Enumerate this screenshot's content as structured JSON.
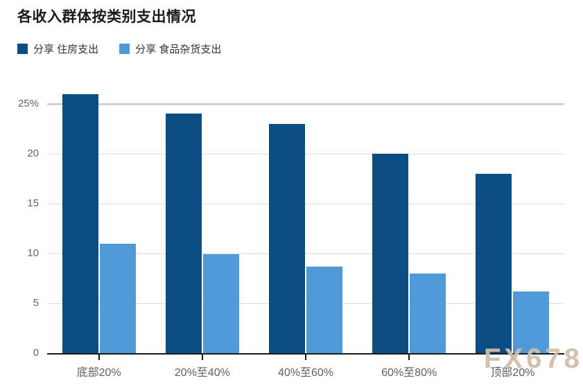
{
  "title": "各收入群体按类别支出情况",
  "watermark": "FX678",
  "legend": [
    {
      "key": "housing",
      "label": "分享 住房支出",
      "color": "#0a4d82"
    },
    {
      "key": "groceries",
      "label": "分享 食品杂货支出",
      "color": "#4f9ad6"
    }
  ],
  "chart_data": {
    "type": "bar",
    "title": "各收入群体按类别支出情况",
    "categories": [
      "底部20%",
      "20%至40%",
      "40%至60%",
      "60%至80%",
      "顶部20%"
    ],
    "series": [
      {
        "key": "housing",
        "name": "分享 住房支出",
        "color": "#0a4d82",
        "values": [
          26,
          24,
          23,
          20,
          18
        ]
      },
      {
        "key": "groceries",
        "name": "分享 食品杂货支出",
        "color": "#4f9ad6",
        "values": [
          11,
          9.9,
          8.7,
          8,
          6.2
        ]
      }
    ],
    "xlabel": "",
    "ylabel": "",
    "ylim": [
      0,
      25
    ],
    "yticks": [
      {
        "value": 0,
        "label": "0"
      },
      {
        "value": 5,
        "label": "5"
      },
      {
        "value": 10,
        "label": "10"
      },
      {
        "value": 15,
        "label": "15"
      },
      {
        "value": 20,
        "label": "20"
      },
      {
        "value": 25,
        "label": "25%"
      }
    ],
    "grid": true,
    "legend_position": "top-left"
  }
}
